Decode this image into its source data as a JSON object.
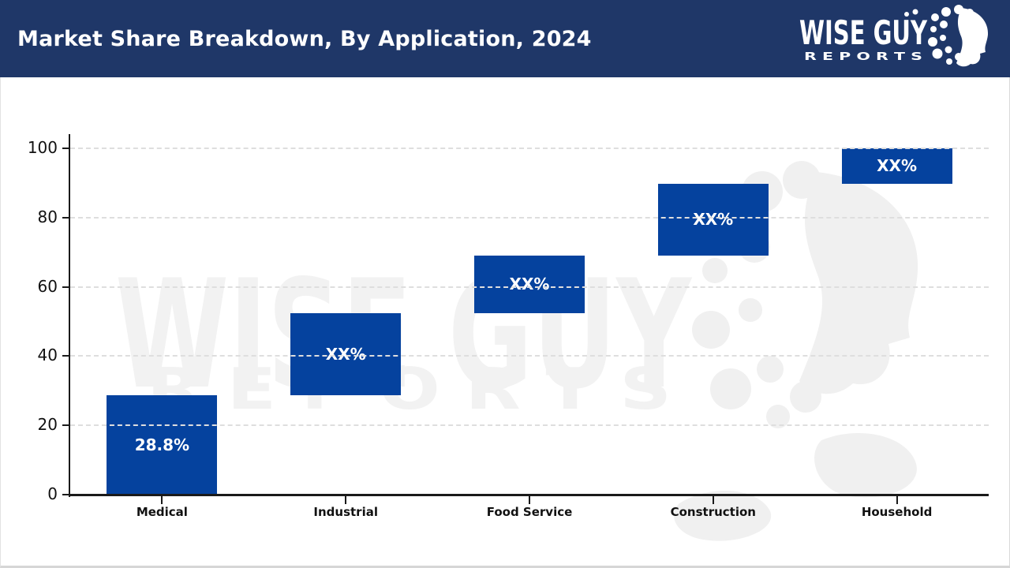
{
  "header": {
    "title": "Market Share Breakdown, By Application, 2024",
    "logo": {
      "line1": "WISE GUY",
      "line2": "R E P O R T S"
    }
  },
  "watermark": {
    "line1": "WISE GUY",
    "line2": "R E P O R T S"
  },
  "colors": {
    "header_bg": "#1f3768",
    "bar": "#05429e",
    "bar_label": "#ffffff",
    "axis": "#1a1a1a",
    "grid": "#dedede",
    "watermark_text": "#f2f2f2",
    "watermark_face": "#f0f0f0"
  },
  "chart_data": {
    "type": "bar",
    "subtype": "waterfall",
    "title": "Market Share Breakdown, By Application, 2024",
    "categories": [
      "Medical",
      "Industrial",
      "Food Service",
      "Construction",
      "Household"
    ],
    "segments": [
      {
        "category": "Medical",
        "start": 0,
        "end": 28.8,
        "label": "28.8%"
      },
      {
        "category": "Industrial",
        "start": 28.8,
        "end": 52.5,
        "label": "XX%"
      },
      {
        "category": "Food Service",
        "start": 52.5,
        "end": 69.0,
        "label": "XX%"
      },
      {
        "category": "Construction",
        "start": 69.0,
        "end": 89.8,
        "label": "XX%"
      },
      {
        "category": "Household",
        "start": 89.8,
        "end": 100.0,
        "label": "XX%"
      }
    ],
    "yticks": [
      0,
      20,
      40,
      60,
      80,
      100
    ],
    "ylim": [
      0,
      104
    ],
    "xlabel": "",
    "ylabel": "",
    "grid": "dashed-horizontal-over-bars",
    "legend": "none"
  }
}
